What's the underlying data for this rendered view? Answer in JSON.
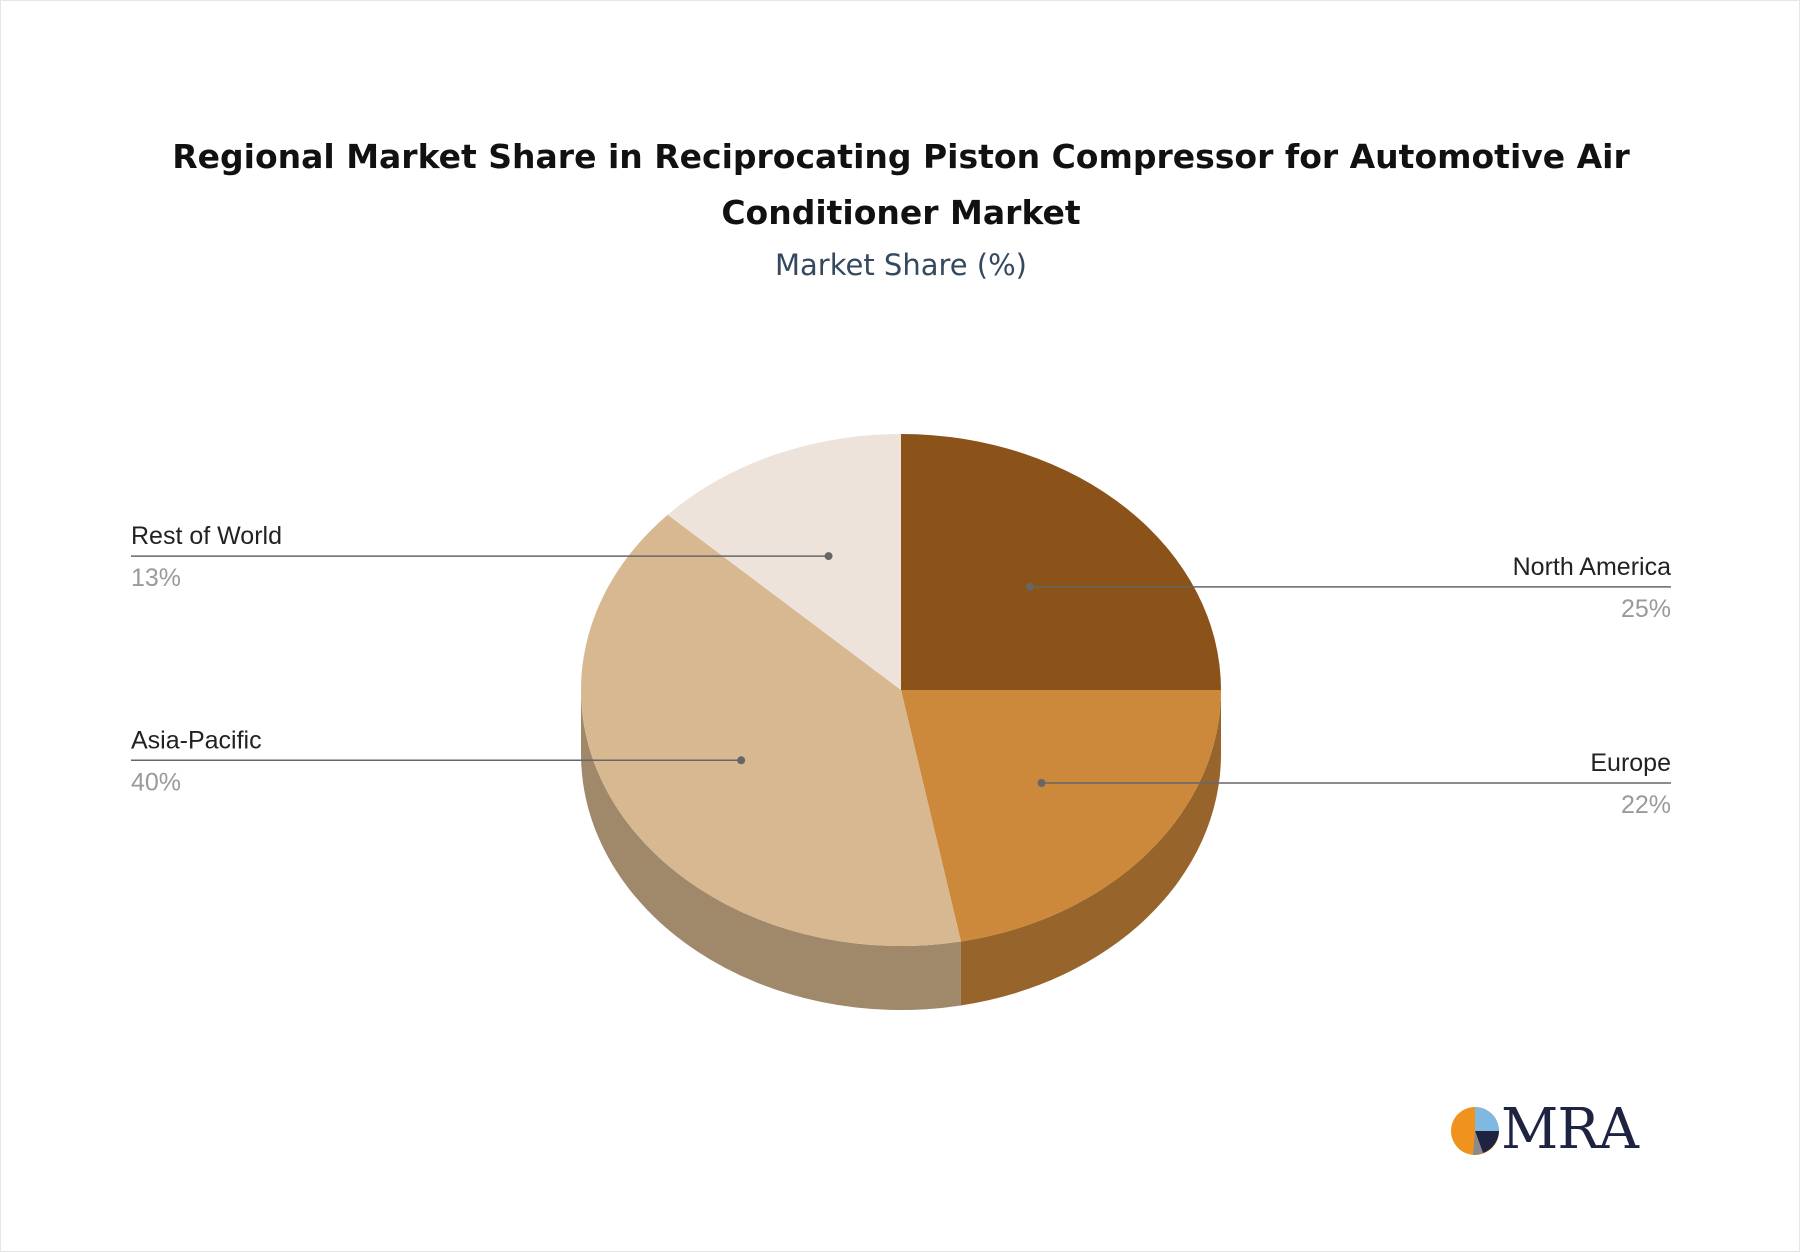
{
  "chart_data": {
    "type": "pie",
    "title": "Regional Market Share in Reciprocating Piston Compressor for Automotive Air Conditioner Market",
    "subtitle": "Market Share (%)",
    "unit": "%",
    "slices": [
      {
        "name": "North America",
        "value": 25,
        "label": "25%",
        "color": "#8b5219"
      },
      {
        "name": "Europe",
        "value": 22,
        "label": "22%",
        "color": "#cc893c"
      },
      {
        "name": "Asia-Pacific",
        "value": 40,
        "label": "40%",
        "color": "#d8b891"
      },
      {
        "name": "Rest of World",
        "value": 13,
        "label": "13%",
        "color": "#ede3da"
      }
    ],
    "start_angle": "12 o'clock",
    "direction": "clockwise",
    "style": "3d-tilted",
    "legend": "none"
  },
  "brand": {
    "logo_text": "MRA",
    "colors": {
      "orange": "#f0921e",
      "navy": "#1f2342",
      "light_blue": "#7fb8e0",
      "gray": "#8a8a8a"
    }
  }
}
